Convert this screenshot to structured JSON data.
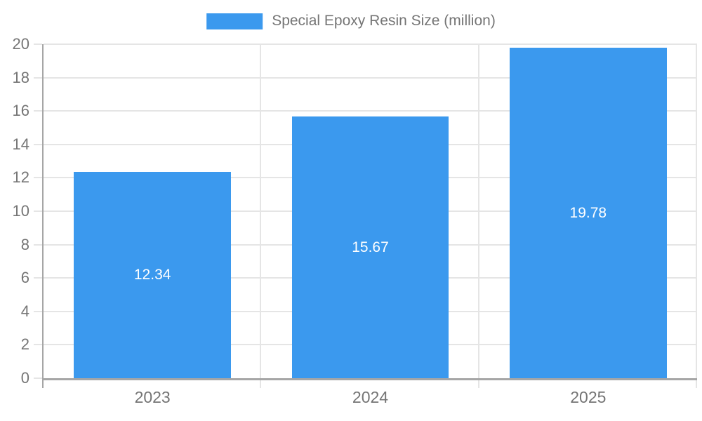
{
  "chart_data": {
    "type": "bar",
    "title": "Special Epoxy Resin Size (million)",
    "categories": [
      "2023",
      "2024",
      "2025"
    ],
    "values": [
      12.34,
      15.67,
      19.78
    ],
    "value_labels": [
      "12.34",
      "15.67",
      "19.78"
    ],
    "ylim": [
      0,
      20
    ],
    "yticks": [
      0,
      2,
      4,
      6,
      8,
      10,
      12,
      14,
      16,
      18,
      20
    ],
    "grid": true,
    "legend_position": "top-center",
    "xlabel": "",
    "ylabel": "",
    "colors": {
      "bar": "#3b99ee",
      "bar_label": "#ffffff",
      "axis": "#a6a6a6",
      "grid": "#e5e5e5",
      "tick_text": "#757575",
      "legend_text": "#757575",
      "background": "#ffffff"
    }
  }
}
